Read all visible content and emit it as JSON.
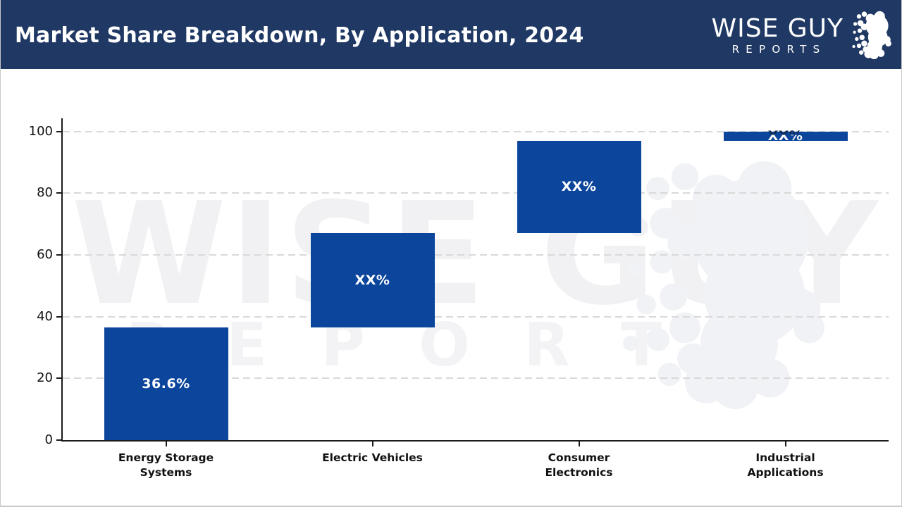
{
  "header": {
    "title": "Market Share Breakdown, By Application, 2024",
    "logo": {
      "line1": "WISE GUY",
      "line2": "REPORTS"
    }
  },
  "watermark": {
    "line1": "WISE GUY",
    "line2": "REPORTS"
  },
  "chart_data": {
    "type": "bar",
    "subtype": "floating-waterfall",
    "title": "Market Share Breakdown, By Application, 2024",
    "categories": [
      [
        "Energy Storage",
        "Systems"
      ],
      [
        "Electric Vehicles"
      ],
      [
        "Consumer",
        "Electronics"
      ],
      [
        "Industrial",
        "Applications"
      ]
    ],
    "segments": [
      {
        "category": "Energy Storage Systems",
        "start": 0,
        "end": 36.6,
        "label": "36.6%"
      },
      {
        "category": "Electric Vehicles",
        "start": 36.6,
        "end": 67,
        "label": "XX%"
      },
      {
        "category": "Consumer Electronics",
        "start": 67,
        "end": 97,
        "label": "XX%"
      },
      {
        "category": "Industrial Applications",
        "start": 97,
        "end": 100,
        "label": "XX%"
      }
    ],
    "ylim": [
      0,
      100
    ],
    "yticks": [
      0,
      20,
      40,
      60,
      80,
      100
    ],
    "grid": "horizontal-dashed",
    "legend": "none",
    "colors": {
      "bar": "#0b459c",
      "bar_label": "#ffffff",
      "grid": "#d9d9d9",
      "axis": "#1a1a1a",
      "tick_label": "#111111",
      "header_bg": "#1f3864",
      "header_text": "#ffffff",
      "watermark": "#f1f1f4"
    }
  }
}
